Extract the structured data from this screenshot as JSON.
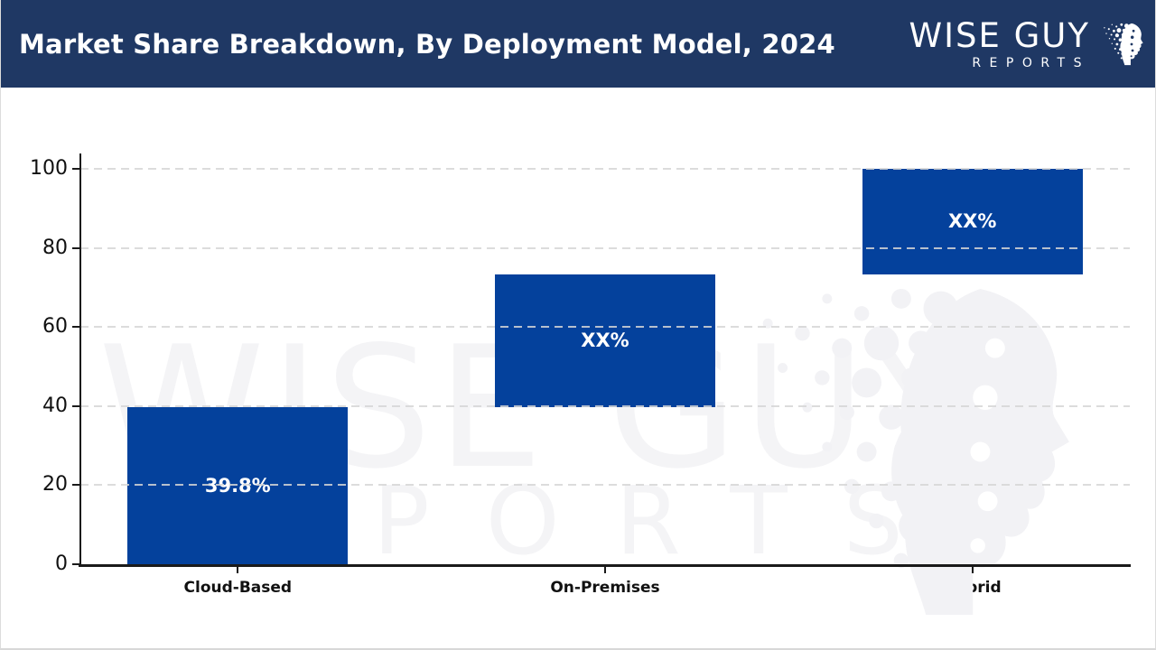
{
  "header": {
    "title": "Market Share Breakdown, By Deployment Model, 2024",
    "logo": {
      "primary": "WISE GUY",
      "secondary": "REPORTS"
    }
  },
  "watermark": {
    "primary": "WISE GUY",
    "secondary": "REPORTS"
  },
  "chart_data": {
    "type": "bar",
    "subtype": "waterfall",
    "title": "Market Share Breakdown, By Deployment Model, 2024",
    "categories": [
      "Cloud-Based",
      "On-Premises",
      "Hybrid"
    ],
    "segments": [
      {
        "category": "Cloud-Based",
        "start": 0,
        "end": 39.8,
        "label": "39.8%"
      },
      {
        "category": "On-Premises",
        "start": 39.8,
        "end": 73.3,
        "label": "XX%"
      },
      {
        "category": "Hybrid",
        "start": 73.3,
        "end": 100,
        "label": "XX%"
      }
    ],
    "ylim": [
      0,
      100
    ],
    "yticks": [
      0,
      20,
      40,
      60,
      80,
      100
    ],
    "xlabel": "",
    "ylabel": "",
    "grid": {
      "horizontal": true,
      "style": "dashed"
    },
    "legend": null,
    "colors": {
      "bar": "#04419c",
      "bar_label": "#ffffff",
      "header_bg": "#1f3864",
      "axis": "#1a1a1a",
      "gridline": "#d6d6d6",
      "watermark": "#f4f4f6"
    }
  }
}
